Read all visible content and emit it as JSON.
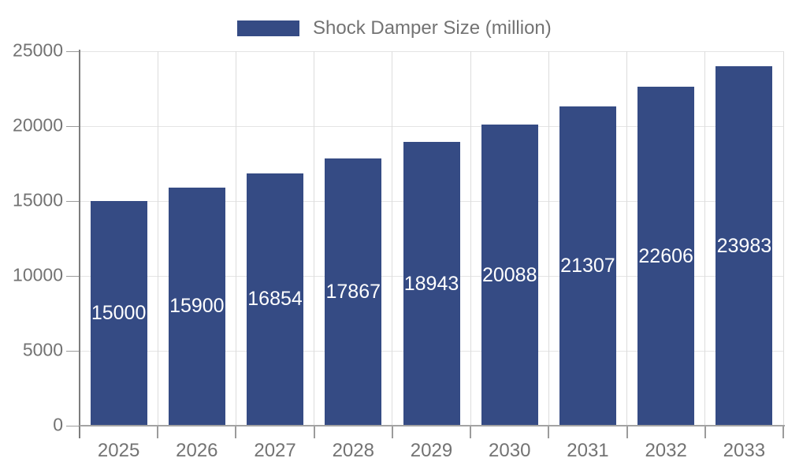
{
  "legend": {
    "label": "Shock Damper Size (million)"
  },
  "chart_data": {
    "type": "bar",
    "title": "",
    "categories": [
      "2025",
      "2026",
      "2027",
      "2028",
      "2029",
      "2030",
      "2031",
      "2032",
      "2033"
    ],
    "series": [
      {
        "name": "Shock Damper Size (million)",
        "values": [
          15000,
          15900,
          16854,
          17867,
          18943,
          20088,
          21307,
          22606,
          23983
        ]
      }
    ],
    "bar_value_labels": [
      "15000",
      "15900",
      "16854",
      "17867",
      "18943",
      "20088",
      "21307",
      "22606",
      "23983"
    ],
    "xlabel": "",
    "ylabel": "",
    "ylim": [
      0,
      25000
    ],
    "yticks": [
      0,
      5000,
      10000,
      15000,
      20000,
      25000
    ],
    "ytick_labels": [
      "0",
      "5000",
      "10000",
      "15000",
      "20000",
      "25000"
    ],
    "grid": true,
    "legend_position": "top",
    "bar_labels_inside": true,
    "bar_labels_centered_vertically": true
  },
  "colors": {
    "bar": "#354B84",
    "bar_label": "#FFFFFF",
    "axis_text": "#737373",
    "legend_text": "#737373",
    "axis_line_y": "#7D7D7D",
    "axis_line_x": "#A3A3A3",
    "tick": "#9B9B9B",
    "gridline_h": "#E4E4E4",
    "gridline_v": "#DCDCDC",
    "background": "#FFFFFF"
  }
}
